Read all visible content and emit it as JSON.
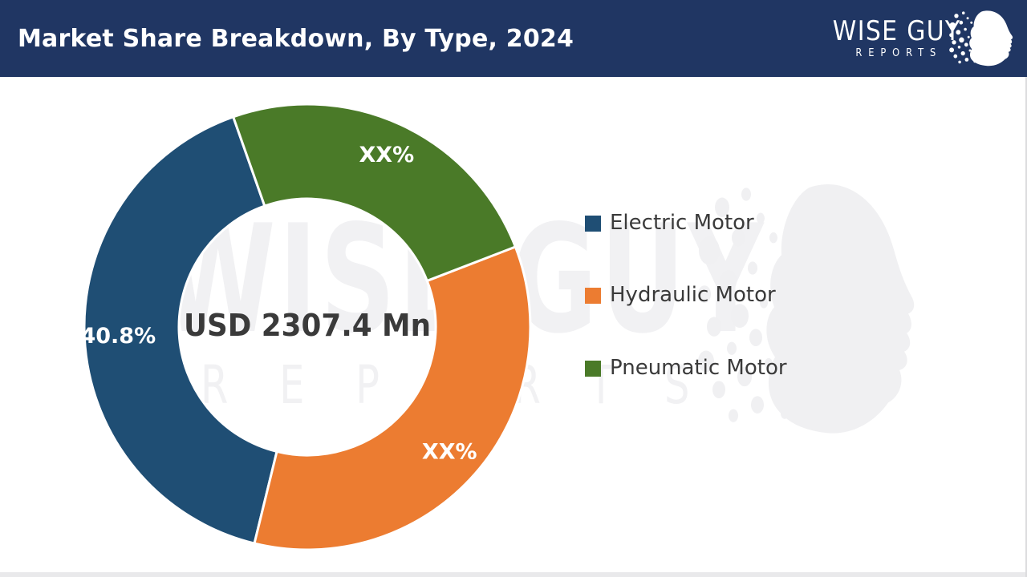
{
  "header": {
    "title": "Market Share Breakdown, By Type, 2024",
    "logo": {
      "brand": "WISE GUY",
      "sub": "REPORTS"
    }
  },
  "watermark": {
    "brand": "WISE GUY",
    "sub": "REPORTS"
  },
  "colors": {
    "header_bg": "#203663",
    "title_text": "#ffffff",
    "center_text": "#3a3a3a",
    "legend_text": "#3a3a3a",
    "watermark_text": "#f1f1f3",
    "watermark_face": "#f0f0f2",
    "bottom_strip": "#e9e9eb",
    "edge_border": "#dcdcde"
  },
  "chart_data": {
    "type": "pie",
    "donut": true,
    "title": "Market Share Breakdown, By Type, 2024",
    "center_label": "USD 2307.4 Mn",
    "legend_position": "right",
    "start_angle_deg": 109.4,
    "direction": "counterclockwise",
    "segments": [
      {
        "name": "Electric Motor",
        "value_pct": 40.8,
        "label": "40.8%",
        "color": "#1f4e74"
      },
      {
        "name": "Hydraulic Motor",
        "value_pct": 34.67,
        "label": "XX%",
        "color": "#ec7c31"
      },
      {
        "name": "Pneumatic Motor",
        "value_pct": 24.53,
        "label": "XX%",
        "color": "#4a7a28"
      }
    ]
  }
}
